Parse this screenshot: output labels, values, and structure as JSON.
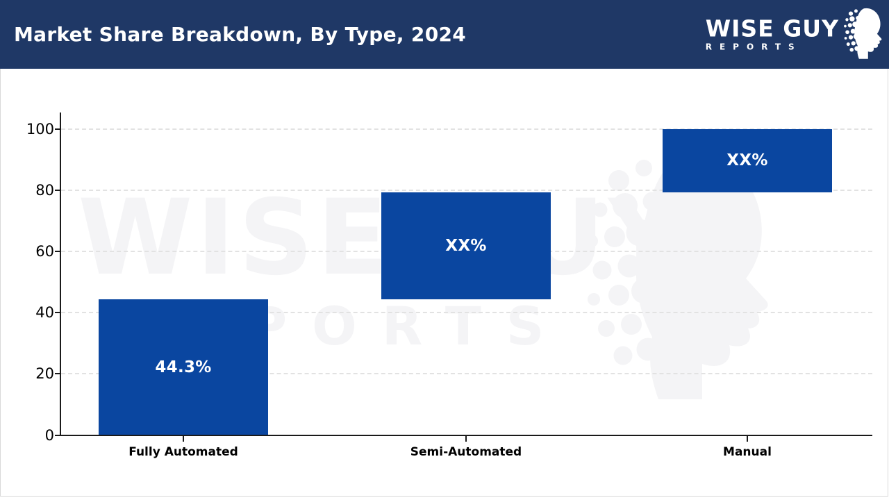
{
  "header": {
    "title": "Market Share Breakdown, By Type, 2024",
    "logo": {
      "wordmark": "WISE GUY",
      "subtext": "REPORTS"
    }
  },
  "watermark": {
    "wordmark": "WISE GUY",
    "subtext": "REPORTS"
  },
  "colors": {
    "header_bg": "#1F3866",
    "title_text": "#FFFFFF",
    "bar": "#0A46A0",
    "bar_label": "#FFFFFF",
    "grid": "#E2E2E2",
    "axis": "#1A1A1A",
    "tick_text": "#000000",
    "watermark": "#F4F4F6",
    "card_border": "#D9D9D9"
  },
  "chart_data": {
    "type": "bar",
    "variant": "waterfall",
    "title": "Market Share Breakdown, By Type, 2024",
    "xlabel": "",
    "ylabel": "",
    "categories": [
      "Fully Automated",
      "Semi-Automated",
      "Manual"
    ],
    "segments": [
      {
        "category": "Fully Automated",
        "start": 0,
        "end": 44.3,
        "label": "44.3%"
      },
      {
        "category": "Semi-Automated",
        "start": 44.3,
        "end": 79.4,
        "label": "XX%"
      },
      {
        "category": "Manual",
        "start": 79.4,
        "end": 100,
        "label": "XX%"
      }
    ],
    "ylim": [
      0,
      100
    ],
    "yticks": [
      0,
      20,
      40,
      60,
      80,
      100
    ],
    "grid": "horizontal-dashed",
    "legend": null
  }
}
